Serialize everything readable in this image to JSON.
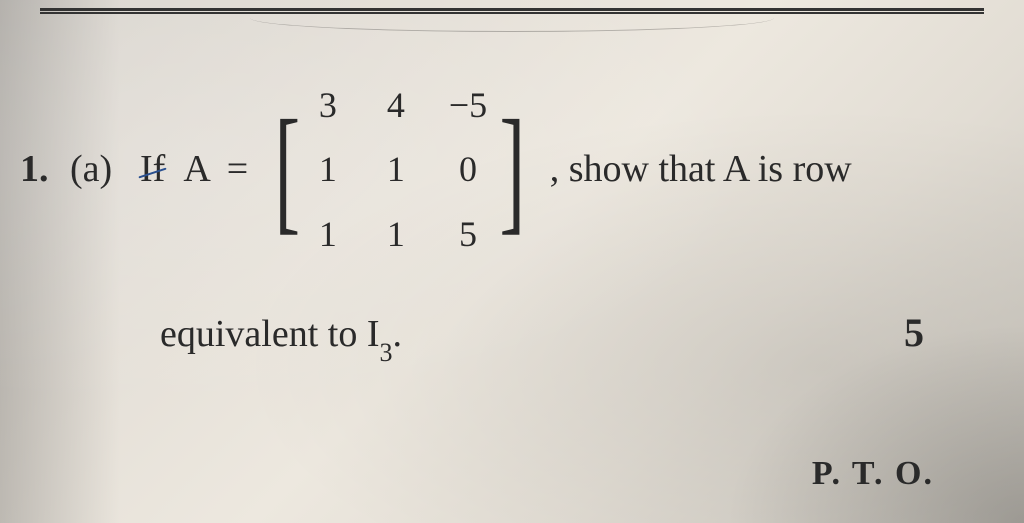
{
  "question": {
    "number": "1.",
    "part": "(a)",
    "lead": "If",
    "variable": "A",
    "equals": "=",
    "matrix": {
      "rows": [
        [
          "3",
          "4",
          "−5"
        ],
        [
          "1",
          "1",
          "0"
        ],
        [
          "1",
          "1",
          "5"
        ]
      ]
    },
    "tail1": ", show that A is row",
    "tail2_pre": "equivalent to I",
    "tail2_sub": "3",
    "tail2_post": ".",
    "marks": "5"
  },
  "footer": {
    "pto": "P. T. O."
  },
  "style": {
    "text_color": "#2a2a2a",
    "accent_stroke": "#2a5090",
    "font_size_main": 38,
    "font_size_matrix": 36,
    "font_size_sub": 26,
    "font_size_marks": 40,
    "font_size_pto": 34
  }
}
